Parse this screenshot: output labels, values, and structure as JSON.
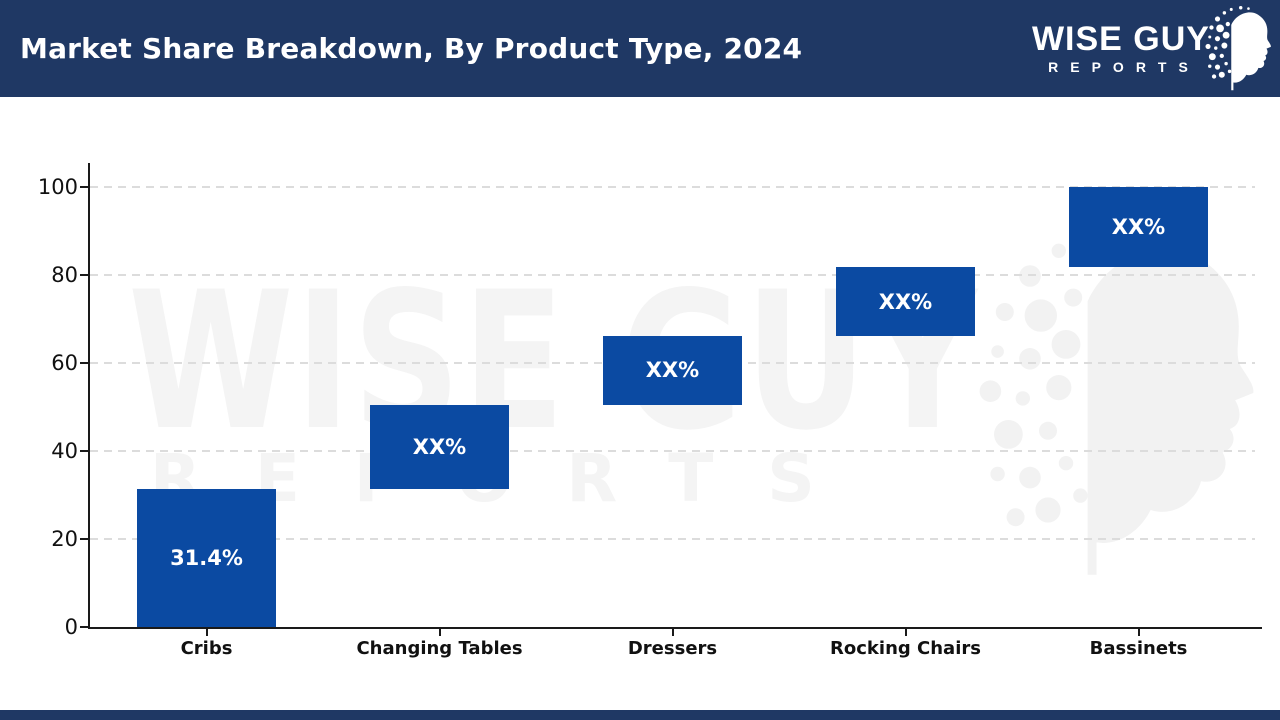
{
  "header": {
    "title": "Market Share Breakdown, By Product Type, 2024",
    "logo": {
      "line1": "WISE GUY",
      "line2": "REPORTS"
    }
  },
  "watermark": {
    "line1": "WISE GUY",
    "line2": "REPORTS"
  },
  "colors": {
    "header_bg": "#1f3864",
    "footer_bg": "#1f3864",
    "title_text": "#ffffff",
    "bar": "#0b4aa2",
    "bar_label": "#ffffff",
    "grid": "#dcdcdc",
    "axis": "#1a1a1a",
    "watermark": "#f2f2f2"
  },
  "chart_data": {
    "type": "bar",
    "subtype": "waterfall",
    "title": "Market Share Breakdown, By Product Type, 2024",
    "xlabel": "",
    "ylabel": "",
    "categories": [
      "Cribs",
      "Changing Tables",
      "Dressers",
      "Rocking Chairs",
      "Bassinets"
    ],
    "segments": [
      {
        "category": "Cribs",
        "start": 0,
        "end": 31.4,
        "label": "31.4%"
      },
      {
        "category": "Changing Tables",
        "start": 31.4,
        "end": 50.5,
        "label": "XX%"
      },
      {
        "category": "Dressers",
        "start": 50.5,
        "end": 66.1,
        "label": "XX%"
      },
      {
        "category": "Rocking Chairs",
        "start": 66.1,
        "end": 81.8,
        "label": "XX%"
      },
      {
        "category": "Bassinets",
        "start": 81.8,
        "end": 100,
        "label": "XX%"
      }
    ],
    "ylim": [
      0,
      105
    ],
    "yticks": [
      0,
      20,
      40,
      60,
      80,
      100
    ],
    "grid": "horizontal-dashed",
    "legend": "none"
  }
}
